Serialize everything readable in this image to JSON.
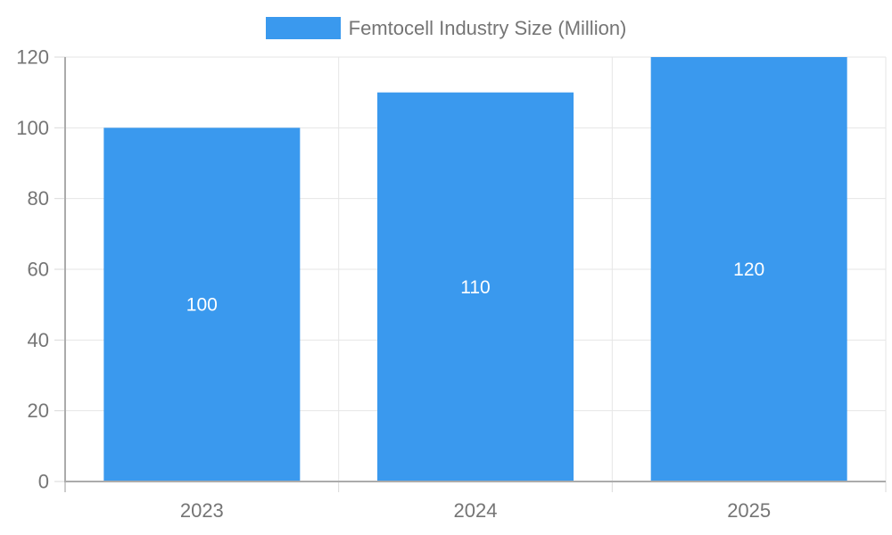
{
  "chart_data": {
    "type": "bar",
    "title": "Femtocell Industry Size (Million)",
    "categories": [
      "2023",
      "2024",
      "2025"
    ],
    "series": [
      {
        "name": "Femtocell Industry Size (Million)",
        "values": [
          100,
          110,
          120
        ]
      }
    ],
    "bar_value_labels": [
      "100",
      "110",
      "120"
    ],
    "xlabel": "",
    "ylabel": "",
    "ylim": [
      0,
      120
    ],
    "yticks": [
      0,
      20,
      40,
      60,
      80,
      100,
      120
    ],
    "grid": true,
    "legend_position": "top-center",
    "colors": {
      "bar": "#3a99ee",
      "gridline": "#e6e6e6",
      "tick": "#d9d9d9",
      "axis_line": "#ababab",
      "axis_text": "#757575",
      "value_label": "#ffffff",
      "background": "#ffffff"
    }
  }
}
